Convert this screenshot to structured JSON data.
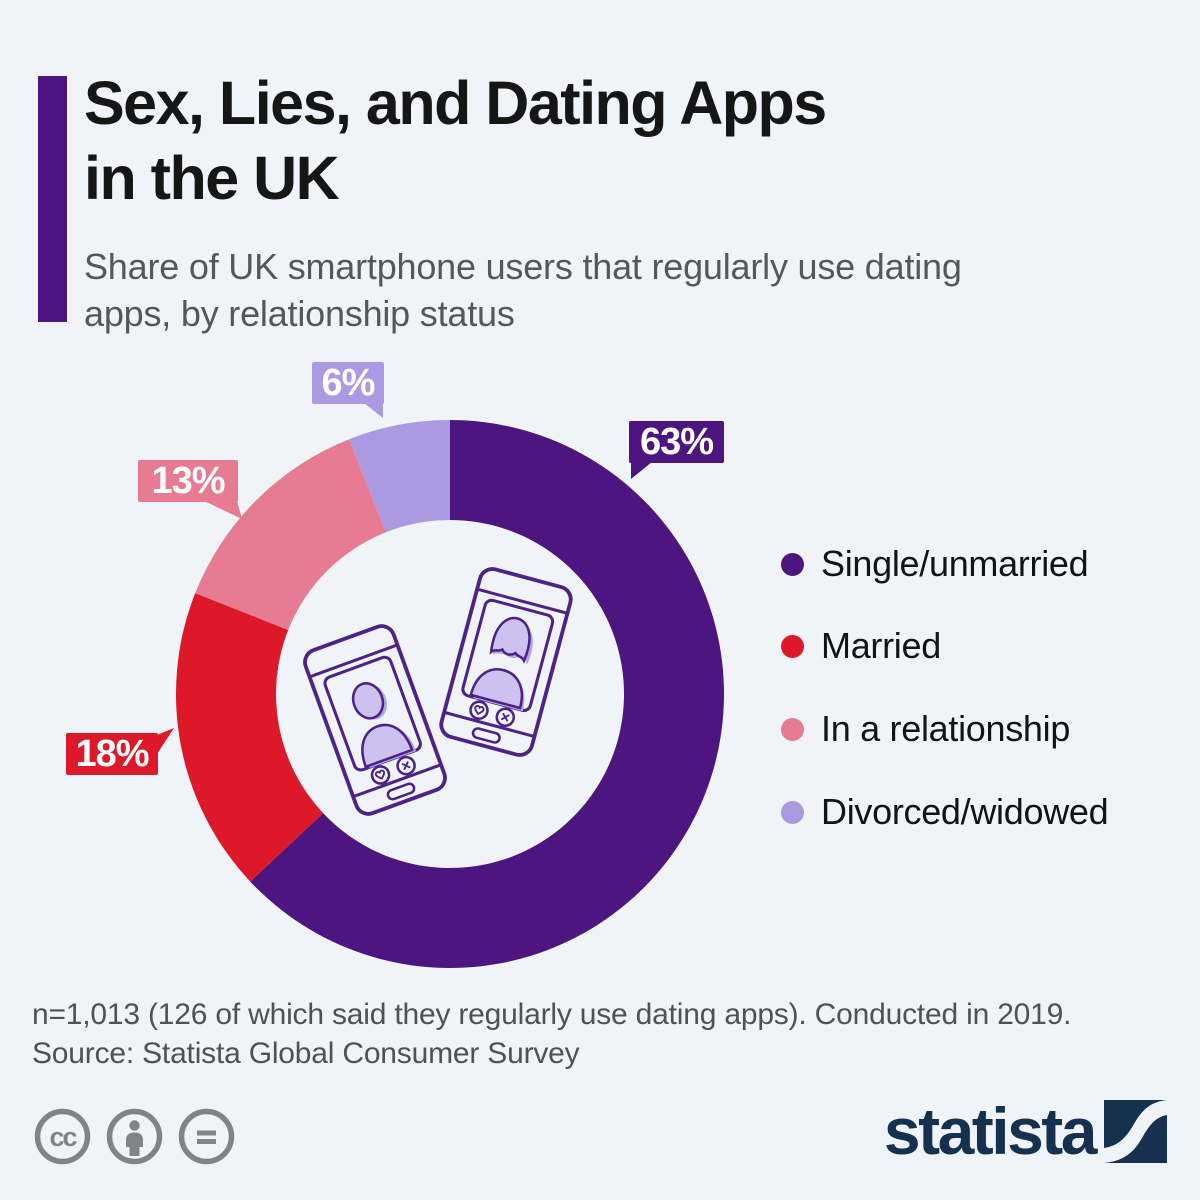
{
  "colors": {
    "background": "#f0f4f8",
    "accent": "#4c1580",
    "title": "#161616",
    "subtitle": "#54585d",
    "note": "#4c5258",
    "legend_text": "#131313",
    "statista_navy": "#16304f",
    "cc_gray": "#7e8589",
    "illustration_stroke": "#4e2388",
    "illustration_fill": "#cdc2ef",
    "illustration_shadow": "#b5a5e5",
    "callout_text": "#ffffff"
  },
  "header": {
    "title_line1": "Sex, Lies, and Dating Apps",
    "title_line2": "in the UK",
    "subtitle_line1": "Share of UK smartphone users that regularly use dating",
    "subtitle_line2": "apps, by relationship status"
  },
  "chart_data": {
    "type": "pie",
    "subtype": "donut",
    "title": "Share of UK smartphone users that regularly use dating apps, by relationship status",
    "categories": [
      "Single/unmarried",
      "Married",
      "In a relationship",
      "Divorced/widowed"
    ],
    "values": [
      63,
      18,
      13,
      6
    ],
    "unit": "%",
    "data_labels": [
      "63%",
      "18%",
      "13%",
      "6%"
    ],
    "colors": [
      "#4c1580",
      "#dd1829",
      "#e77b91",
      "#ab99e2"
    ],
    "start_angle_deg": 0,
    "direction": "clockwise",
    "legend_position": "right",
    "center_illustration": "two-smartphones-with-dating-profiles"
  },
  "footer": {
    "note_line1": "n=1,013 (126 of which said they regularly use dating apps). Conducted in 2019.",
    "note_line2": "Source: Statista Global Consumer Survey",
    "brand": "statista",
    "license_icons": [
      "cc-icon",
      "cc-by-icon",
      "cc-nd-icon"
    ]
  }
}
